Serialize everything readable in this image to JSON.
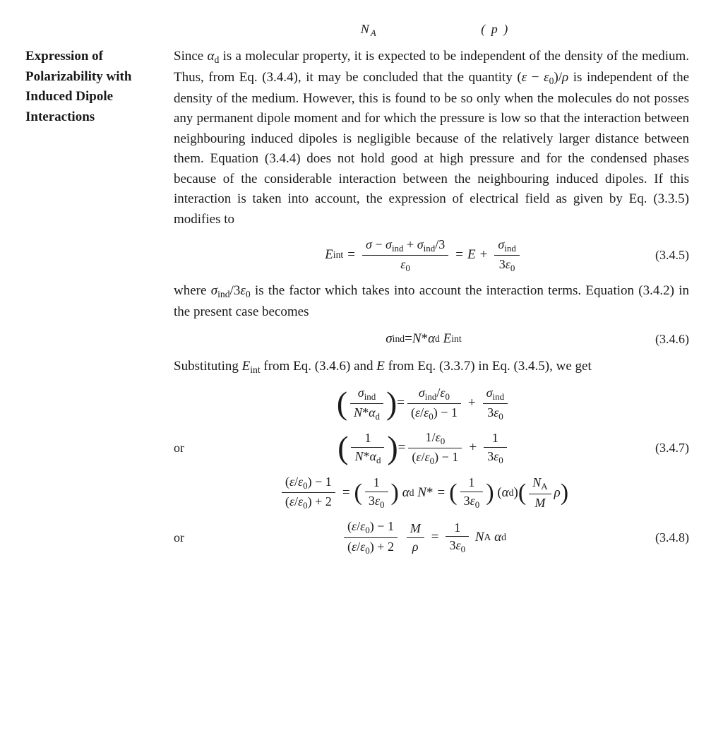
{
  "top_fragment_left": "N",
  "top_fragment_left_sub": "A",
  "top_fragment_right": "( p )",
  "side_heading": "Expression of Polarizability with Induced Dipole Interactions",
  "para1_a": "Since ",
  "para1_alpha": "α",
  "para1_alpha_sub": "d",
  "para1_b": " is a molecular property, it is expected to be independent of the density of the medium. Thus, from Eq. (3.4.4), it may be concluded that the quantity (",
  "para1_eps": "ε",
  "para1_minus": " − ",
  "para1_eps2": "ε",
  "para1_zero": "0",
  "para1_c": ")/",
  "para1_rho": "ρ",
  "para1_d": " is independent of the density of the medium. However, this is found to be so only when the molecules do not posses any permanent dipole moment and for which the pressure is low so that the interaction between neighbouring induced dipoles is negligible because of the relatively larger distance between them. Equation (3.4.4) does not hold good at high pressure and for the condensed phases because of the considerable interaction between the neighbouring induced dipoles. If this interaction is taken into account, the expression of electrical field as given by Eq. (3.3.5) modifies to",
  "eq345_num": "(3.4.5)",
  "eq345_Eint": "E",
  "eq345_int": "int",
  "eq345_sigma": "σ",
  "eq345_sigmaind": "σ",
  "eq345_ind": "ind",
  "eq345_over3": "/3",
  "eq345_eps0": "ε",
  "eq345_zero": "0",
  "eq345_E": "E",
  "eq345_three": "3",
  "para2_a": "where ",
  "para2_sigma": "σ",
  "para2_ind": "ind",
  "para2_b": "/3",
  "para2_eps": "ε",
  "para2_zero": "0",
  "para2_c": " is the factor which takes into account the interaction terms. Equation (3.4.2) in the present case becomes",
  "eq346_num": "(3.4.6)",
  "eq346_sigma": "σ",
  "eq346_ind": "ind",
  "eq346_eq": " = ",
  "eq346_N": "N",
  "eq346_star": "*",
  "eq346_alpha": "α",
  "eq346_d": "d",
  "eq346_E": "E",
  "eq346_int": "int",
  "para3": "Substituting ",
  "para3_E": "E",
  "para3_int": "int",
  "para3_b": " from Eq. (3.4.6) and ",
  "para3_E2": "E",
  "para3_c": " from Eq. (3.3.7) in Eq. (3.4.5), we get",
  "or_label": "or",
  "eq347_num": "(3.4.7)",
  "eq348_num": "(3.4.8)",
  "sym_sigma": "σ",
  "sym_ind": "ind",
  "sym_N": "N",
  "sym_star": "*",
  "sym_alpha": "α",
  "sym_d": "d",
  "sym_eps": "ε",
  "sym_zero": "0",
  "sym_one": "1",
  "sym_three": "3",
  "sym_minus1": " − 1",
  "sym_plus2": " + 2",
  "sym_rho": "ρ",
  "sym_M": "M",
  "sym_NA": "N",
  "sym_A": "A",
  "sym_slash": "/",
  "sym_eq": " = ",
  "sym_plus": " + "
}
